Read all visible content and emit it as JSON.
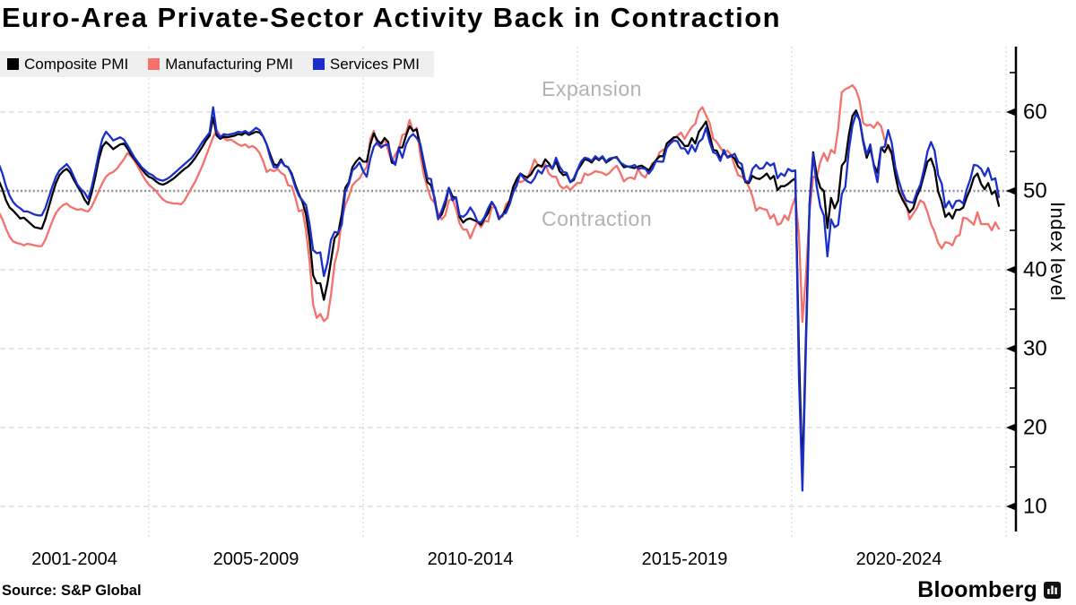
{
  "title": "Euro-Area Private-Sector Activity Back in Contraction",
  "source": "Source: S&P Global",
  "brand": "Bloomberg",
  "chart_data": {
    "type": "line",
    "title": "Euro-Area Private-Sector Activity Back in Contraction",
    "x_unit": "month",
    "x_start": "2001-01",
    "x_end": "2024-11",
    "x_section_labels": [
      "2001-2004",
      "2005-2009",
      "2010-2014",
      "2015-2019",
      "2020-2024"
    ],
    "y_axis": {
      "label": "Index level",
      "ticks": [
        10,
        20,
        30,
        40,
        50,
        60
      ],
      "minor_ticks": [
        15,
        25,
        35,
        45,
        55,
        65
      ],
      "range": [
        7,
        68
      ]
    },
    "threshold": {
      "value": 50,
      "above": "Expansion",
      "below": "Contraction"
    },
    "grid": true,
    "legend_position": "top-left",
    "series": [
      {
        "name": "Composite PMI",
        "color": "#000000",
        "values": [
          53.8,
          53.2,
          52.6,
          52.2,
          51.9,
          51.6,
          51.3,
          50.2,
          48.8,
          47.9,
          47.5,
          47.0,
          46.5,
          46.6,
          46.2,
          45.8,
          45.4,
          45.3,
          45.2,
          46.4,
          48.0,
          49.6,
          51.0,
          52.0,
          52.5,
          52.8,
          52.3,
          51.4,
          50.6,
          49.9,
          48.9,
          48.3,
          49.8,
          51.8,
          54.0,
          55.6,
          56.2,
          55.8,
          55.3,
          55.6,
          55.9,
          56.0,
          55.4,
          54.6,
          54.0,
          53.4,
          52.8,
          52.2,
          51.8,
          51.6,
          51.2,
          50.9,
          50.8,
          51.0,
          51.3,
          51.6,
          52.0,
          52.4,
          52.8,
          53.1,
          53.6,
          54.2,
          54.9,
          55.6,
          56.4,
          57.0,
          59.3,
          57.0,
          56.6,
          56.9,
          56.8,
          56.9,
          57.0,
          57.2,
          57.1,
          57.4,
          57.1,
          57.3,
          57.5,
          57.4,
          56.9,
          55.9,
          54.6,
          53.4,
          53.2,
          54.0,
          53.2,
          53.0,
          52.2,
          50.8,
          49.6,
          48.6,
          47.0,
          44.0,
          39.3,
          38.3,
          38.3,
          36.2,
          38.3,
          41.1,
          44.0,
          44.6,
          47.0,
          50.4,
          51.1,
          53.0,
          53.7,
          54.2,
          53.7,
          53.7,
          55.9,
          57.3,
          56.4,
          56.0,
          56.7,
          56.2,
          53.6,
          53.4,
          55.5,
          55.5,
          57.0,
          58.2,
          57.6,
          57.8,
          55.8,
          53.3,
          51.1,
          50.7,
          49.1,
          46.5,
          47.0,
          48.3,
          50.4,
          49.3,
          49.1,
          46.7,
          46.0,
          46.4,
          46.5,
          46.3,
          46.1,
          45.7,
          46.5,
          47.2,
          48.6,
          47.9,
          46.5,
          46.9,
          47.7,
          48.7,
          50.5,
          51.5,
          52.2,
          51.9,
          51.7,
          52.1,
          52.9,
          53.3,
          53.1,
          54.0,
          53.5,
          52.8,
          53.8,
          52.5,
          52.0,
          52.1,
          51.1,
          51.4,
          52.6,
          53.3,
          54.0,
          53.9,
          53.6,
          54.2,
          53.9,
          54.3,
          53.6,
          53.9,
          54.2,
          54.3,
          53.6,
          53.0,
          53.1,
          53.0,
          52.9,
          53.1,
          53.2,
          52.9,
          52.6,
          53.3,
          53.9,
          54.4,
          54.4,
          56.0,
          56.4,
          56.8,
          56.8,
          56.3,
          55.7,
          55.7,
          56.7,
          56.0,
          57.5,
          58.1,
          58.8,
          57.1,
          55.2,
          55.1,
          54.1,
          54.9,
          54.3,
          54.5,
          54.1,
          53.1,
          52.7,
          51.1,
          51.0,
          51.9,
          51.6,
          51.5,
          51.8,
          52.2,
          51.5,
          51.9,
          50.1,
          50.6,
          50.6,
          50.9,
          51.3,
          51.6,
          29.7,
          13.6,
          31.9,
          48.5,
          54.9,
          51.9,
          50.4,
          50.0,
          45.3,
          49.1,
          47.8,
          48.8,
          53.2,
          53.8,
          57.1,
          59.5,
          60.2,
          59.0,
          56.2,
          54.2,
          55.4,
          53.3,
          52.3,
          55.5,
          54.9,
          55.8,
          54.8,
          52.0,
          49.9,
          48.9,
          48.1,
          47.3,
          47.8,
          49.3,
          50.3,
          52.0,
          53.7,
          54.1,
          52.8,
          49.9,
          48.6,
          46.7,
          47.2,
          46.5,
          47.6,
          47.6,
          47.9,
          49.2,
          50.3,
          51.7,
          52.2,
          50.9,
          50.2,
          51.0,
          49.6,
          50.0,
          48.1
        ]
      },
      {
        "name": "Manufacturing PMI",
        "color": "#f4716c",
        "values": [
          51.4,
          50.6,
          49.8,
          49.0,
          48.4,
          47.8,
          47.3,
          46.4,
          45.2,
          44.2,
          43.6,
          43.4,
          43.3,
          43.1,
          43.3,
          43.2,
          43.1,
          43.0,
          43.0,
          43.8,
          45.0,
          46.2,
          47.2,
          47.8,
          48.2,
          48.4,
          48.0,
          47.8,
          47.6,
          47.7,
          47.5,
          47.4,
          48.0,
          49.0,
          50.0,
          51.0,
          51.8,
          52.2,
          52.4,
          52.8,
          53.4,
          54.0,
          54.8,
          54.4,
          53.8,
          53.0,
          52.2,
          51.4,
          50.8,
          50.4,
          50.0,
          49.4,
          48.9,
          48.6,
          48.5,
          48.4,
          48.4,
          48.3,
          48.8,
          49.6,
          50.4,
          51.2,
          52.2,
          53.2,
          54.4,
          55.6,
          56.8,
          57.7,
          57.0,
          56.7,
          56.4,
          56.5,
          56.2,
          55.9,
          55.7,
          55.9,
          55.5,
          55.7,
          55.4,
          54.8,
          53.8,
          52.4,
          52.7,
          52.5,
          52.8,
          52.3,
          52.0,
          50.7,
          50.6,
          49.2,
          47.4,
          47.6,
          45.0,
          41.1,
          35.6,
          33.9,
          34.4,
          33.5,
          33.9,
          36.8,
          40.7,
          42.6,
          46.3,
          48.2,
          49.3,
          50.7,
          51.2,
          51.6,
          52.4,
          53.0,
          56.6,
          57.6,
          55.8,
          55.6,
          56.7,
          55.1,
          53.7,
          54.6,
          55.3,
          57.1,
          57.3,
          59.0,
          57.5,
          58.0,
          54.6,
          52.0,
          50.4,
          49.0,
          48.5,
          47.1,
          46.4,
          46.9,
          48.8,
          49.0,
          47.7,
          45.9,
          45.1,
          45.1,
          44.0,
          45.1,
          46.1,
          45.4,
          46.2,
          46.1,
          47.9,
          47.9,
          46.8,
          46.7,
          48.3,
          48.8,
          50.3,
          51.4,
          51.1,
          51.3,
          51.6,
          52.7,
          54.0,
          53.2,
          53.0,
          53.4,
          52.2,
          51.8,
          51.8,
          50.7,
          50.3,
          50.6,
          50.1,
          50.6,
          51.0,
          51.0,
          52.2,
          52.0,
          52.2,
          52.5,
          52.4,
          52.3,
          52.0,
          52.3,
          52.8,
          53.2,
          52.3,
          51.2,
          51.6,
          51.7,
          51.5,
          52.8,
          52.0,
          51.7,
          52.6,
          53.5,
          53.7,
          54.9,
          55.2,
          55.4,
          56.2,
          56.7,
          57.0,
          57.4,
          56.6,
          57.4,
          58.1,
          58.5,
          60.1,
          60.6,
          59.6,
          58.6,
          56.6,
          56.2,
          55.5,
          54.9,
          55.1,
          54.6,
          53.2,
          52.0,
          51.8,
          51.4,
          50.5,
          49.3,
          47.5,
          47.9,
          47.7,
          47.6,
          46.5,
          47.0,
          45.7,
          45.9,
          46.9,
          46.3,
          47.9,
          49.2,
          44.5,
          33.4,
          39.4,
          47.4,
          51.8,
          51.7,
          53.7,
          54.8,
          53.8,
          55.2,
          54.8,
          57.9,
          62.5,
          62.9,
          63.1,
          63.4,
          62.8,
          61.4,
          58.6,
          58.3,
          58.4,
          58.0,
          58.7,
          58.2,
          56.5,
          55.5,
          54.6,
          52.1,
          49.8,
          49.6,
          48.4,
          46.4,
          47.1,
          47.8,
          48.8,
          48.5,
          47.3,
          45.8,
          44.8,
          43.4,
          42.7,
          43.5,
          43.4,
          43.1,
          44.2,
          44.4,
          46.6,
          46.5,
          46.1,
          45.7,
          47.3,
          45.8,
          45.8,
          45.8,
          45.0,
          46.0,
          45.2
        ]
      },
      {
        "name": "Services PMI",
        "color": "#1a2ecb",
        "values": [
          55.6,
          55.1,
          54.6,
          54.3,
          54.0,
          53.7,
          53.4,
          52.2,
          50.6,
          49.4,
          48.6,
          48.1,
          47.8,
          47.4,
          47.4,
          47.2,
          47.0,
          46.9,
          46.9,
          47.8,
          49.2,
          50.6,
          51.8,
          52.6,
          53.0,
          53.4,
          52.8,
          51.8,
          50.8,
          50.2,
          49.8,
          49.0,
          50.5,
          52.6,
          54.8,
          56.6,
          57.5,
          57.0,
          56.4,
          56.6,
          56.8,
          56.5,
          55.8,
          55.0,
          54.2,
          53.6,
          53.0,
          52.6,
          52.2,
          52.0,
          51.6,
          51.4,
          51.3,
          51.5,
          51.8,
          52.2,
          52.6,
          53.0,
          53.4,
          53.8,
          54.2,
          54.8,
          55.5,
          56.2,
          56.8,
          57.4,
          60.6,
          57.4,
          56.8,
          57.2,
          57.1,
          57.2,
          57.3,
          57.5,
          57.4,
          57.6,
          57.3,
          57.6,
          58.0,
          57.7,
          56.9,
          55.9,
          54.2,
          53.0,
          53.0,
          53.8,
          53.2,
          53.0,
          52.0,
          50.5,
          49.4,
          48.8,
          48.2,
          45.8,
          42.5,
          42.1,
          42.2,
          39.2,
          40.9,
          43.8,
          44.8,
          44.7,
          45.7,
          49.9,
          50.9,
          52.6,
          53.0,
          53.6,
          52.5,
          51.8,
          54.1,
          55.6,
          56.2,
          55.5,
          55.8,
          55.9,
          54.1,
          53.3,
          55.4,
          54.2,
          55.9,
          56.8,
          57.2,
          56.7,
          56.0,
          53.7,
          51.6,
          51.5,
          48.8,
          46.4,
          47.5,
          48.8,
          50.4,
          48.8,
          49.2,
          46.9,
          46.7,
          47.1,
          47.9,
          47.2,
          46.1,
          46.0,
          46.7,
          47.8,
          48.6,
          47.9,
          46.4,
          47.0,
          47.2,
          48.3,
          49.8,
          50.7,
          52.2,
          51.6,
          51.2,
          51.0,
          51.6,
          52.6,
          52.2,
          53.1,
          53.2,
          52.8,
          54.2,
          53.1,
          52.4,
          52.3,
          51.1,
          51.6,
          52.7,
          53.7,
          54.2,
          54.1,
          53.8,
          54.4,
          54.0,
          54.4,
          53.7,
          54.1,
          54.2,
          54.2,
          53.6,
          53.3,
          53.1,
          53.1,
          53.3,
          52.8,
          52.9,
          52.8,
          52.2,
          52.8,
          53.8,
          53.7,
          53.7,
          55.5,
          56.0,
          56.4,
          56.3,
          55.4,
          55.4,
          54.7,
          55.8,
          55.0,
          56.2,
          56.6,
          58.0,
          56.2,
          54.9,
          54.7,
          53.8,
          55.2,
          54.2,
          54.4,
          54.7,
          53.7,
          53.4,
          51.2,
          51.2,
          52.8,
          53.3,
          52.8,
          52.9,
          53.6,
          53.2,
          53.5,
          51.6,
          52.2,
          51.9,
          52.8,
          52.5,
          52.6,
          26.4,
          12.0,
          30.5,
          48.3,
          54.7,
          50.5,
          48.0,
          46.9,
          41.7,
          46.4,
          45.4,
          45.7,
          49.6,
          50.5,
          55.2,
          58.3,
          59.8,
          59.0,
          56.4,
          54.6,
          55.9,
          53.1,
          51.1,
          55.5,
          55.6,
          57.7,
          56.1,
          53.0,
          51.2,
          49.8,
          48.8,
          48.6,
          48.5,
          49.8,
          50.8,
          52.7,
          55.0,
          56.2,
          55.1,
          52.0,
          50.9,
          47.9,
          48.7,
          47.8,
          48.7,
          48.8,
          48.4,
          50.2,
          51.5,
          53.3,
          53.2,
          52.8,
          51.9,
          52.9,
          51.4,
          51.6,
          49.2
        ]
      }
    ]
  }
}
